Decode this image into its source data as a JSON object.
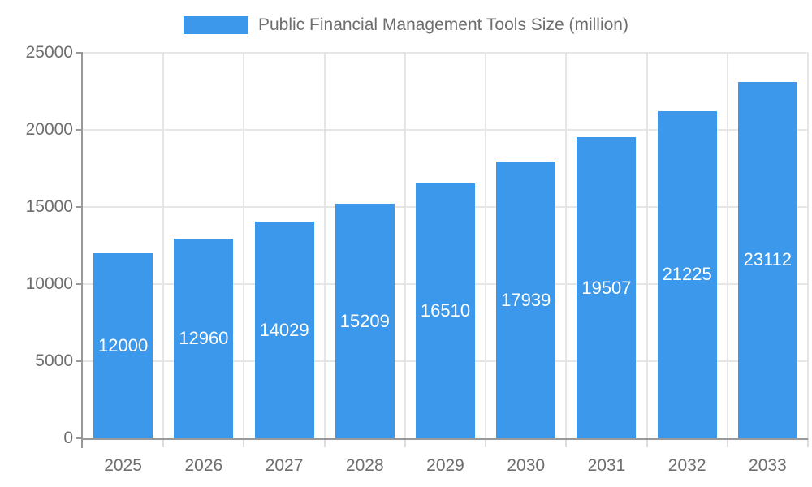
{
  "chart_data": {
    "type": "bar",
    "title": "Public Financial Management Tools Size (million)",
    "categories": [
      "2025",
      "2026",
      "2027",
      "2028",
      "2029",
      "2030",
      "2031",
      "2032",
      "2033"
    ],
    "values": [
      12000,
      12960,
      14029,
      15209,
      16510,
      17939,
      19507,
      21225,
      23112
    ],
    "value_labels": [
      "12000",
      "12960",
      "14029",
      "15209",
      "16510",
      "17939",
      "19507",
      "21225",
      "23112"
    ],
    "ylim": [
      0,
      25000
    ],
    "yticks": [
      0,
      5000,
      10000,
      15000,
      20000,
      25000
    ],
    "ytick_labels": [
      "0",
      "5000",
      "10000",
      "15000",
      "20000",
      "25000"
    ],
    "xlabel": "",
    "ylabel": "",
    "legend_position": "top",
    "grid": "on",
    "legend_swatch_icon": "series-color-swatch",
    "colors": {
      "bar": "#3b98eb",
      "axis": "#999999",
      "grid": "#e6e6e6",
      "x_minor_tick": "#dcdcdc",
      "tick_label": "#6e6e6e",
      "value_label": "#ffffff",
      "background": "#ffffff"
    }
  }
}
